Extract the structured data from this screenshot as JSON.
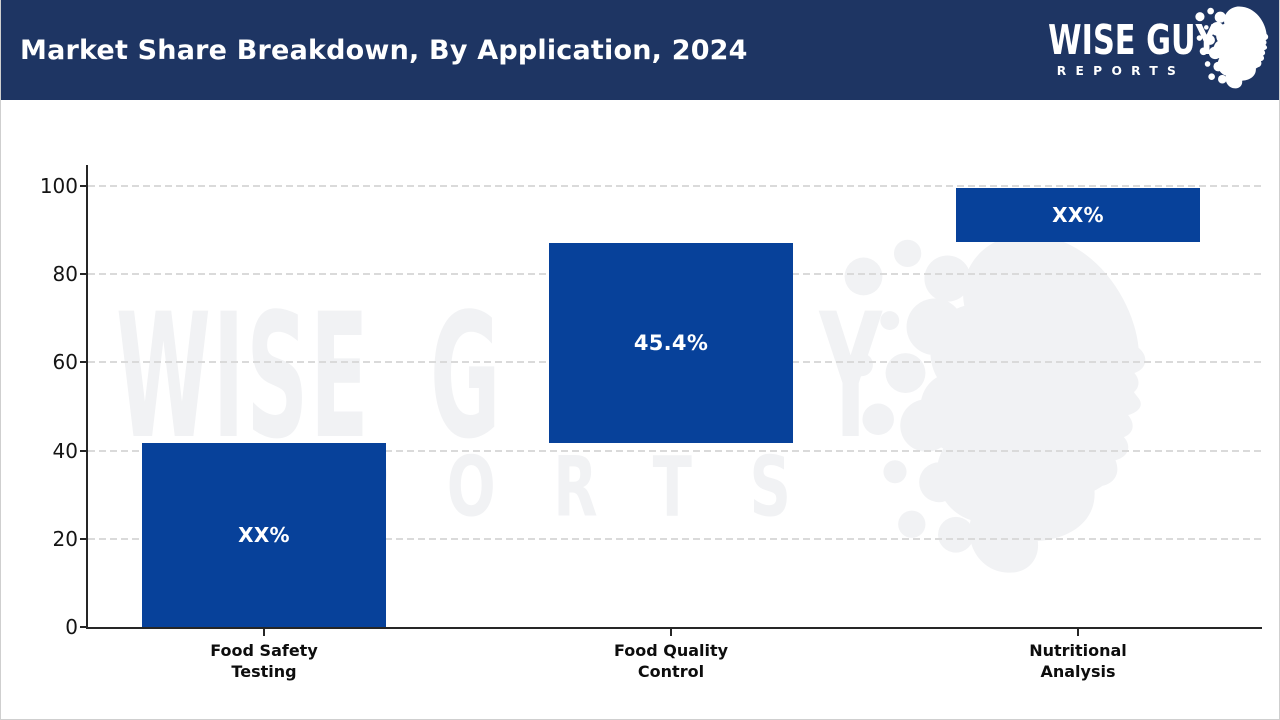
{
  "header": {
    "title": "Market Share Breakdown, By Application, 2024",
    "bg_color": "#1e3563",
    "text_color": "#ffffff",
    "logo": {
      "line1": "WISE GUY",
      "line2": "REPORTS"
    }
  },
  "watermark": {
    "word1": "WISE",
    "word2": "G U Y",
    "word3": "REPORTS"
  },
  "chart_data": {
    "type": "bar",
    "subtype": "waterfall",
    "title": "Market Share Breakdown, By Application, 2024",
    "categories": [
      "Food Safety\nTesting",
      "Food Quality\nControl",
      "Nutritional\nAnalysis"
    ],
    "series": [
      {
        "name": "Food Safety Testing",
        "start": 0,
        "end": 41.7,
        "label": "XX%"
      },
      {
        "name": "Food Quality Control",
        "start": 41.7,
        "end": 87.1,
        "label": "45.4%"
      },
      {
        "name": "Nutritional Analysis",
        "start": 87.2,
        "end": 99.5,
        "label": "XX%"
      }
    ],
    "ylim": [
      0,
      104.5
    ],
    "yticks": [
      0,
      20,
      40,
      60,
      80,
      100
    ],
    "xlabel": "",
    "ylabel": "",
    "grid": "horizontal-dashed",
    "legend": "none",
    "bar_color": "#07419a",
    "bar_label_color": "#ffffff",
    "gridline_color": "#dadada",
    "axis_color": "#262626"
  }
}
